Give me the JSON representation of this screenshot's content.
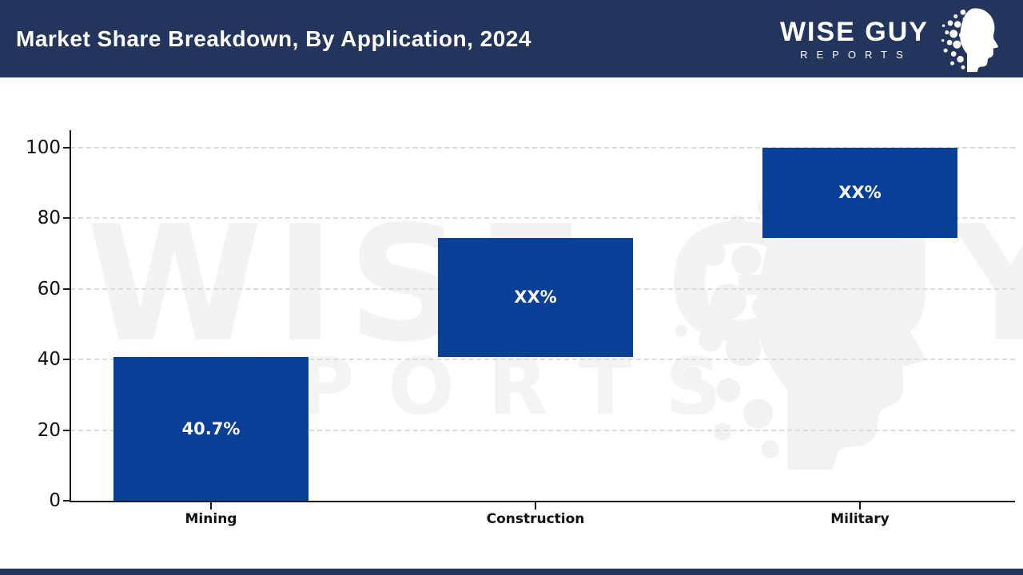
{
  "header": {
    "title": "Market Share Breakdown, By Application, 2024",
    "logo": {
      "line1": "WISE GUY",
      "line2": "REPORTS"
    }
  },
  "watermark": {
    "line1": "WISE GUY",
    "line2": "REPORTS"
  },
  "colors": {
    "header_navy": "#23355c",
    "bar_blue": "#0a3f97",
    "gridline": "#dcdcdc",
    "watermark_gray": "#f3f3f3"
  },
  "chart_data": {
    "type": "bar",
    "subtype": "waterfall",
    "title": "Market Share Breakdown, By Application, 2024",
    "categories": [
      "Mining",
      "Construction",
      "Military"
    ],
    "segments": [
      {
        "category": "Mining",
        "start": 0,
        "end": 40.7,
        "label": "40.7%"
      },
      {
        "category": "Construction",
        "start": 40.7,
        "end": 74.5,
        "label": "XX%"
      },
      {
        "category": "Military",
        "start": 74.5,
        "end": 100,
        "label": "XX%"
      }
    ],
    "values": [
      40.7,
      33.8,
      25.5
    ],
    "xlabel": "",
    "ylabel": "",
    "ylim": [
      0,
      100
    ],
    "yticks": [
      0,
      20,
      40,
      60,
      80,
      100
    ],
    "grid": "horizontal dashed",
    "legend": "none",
    "bar_color": "#0a3f97"
  }
}
